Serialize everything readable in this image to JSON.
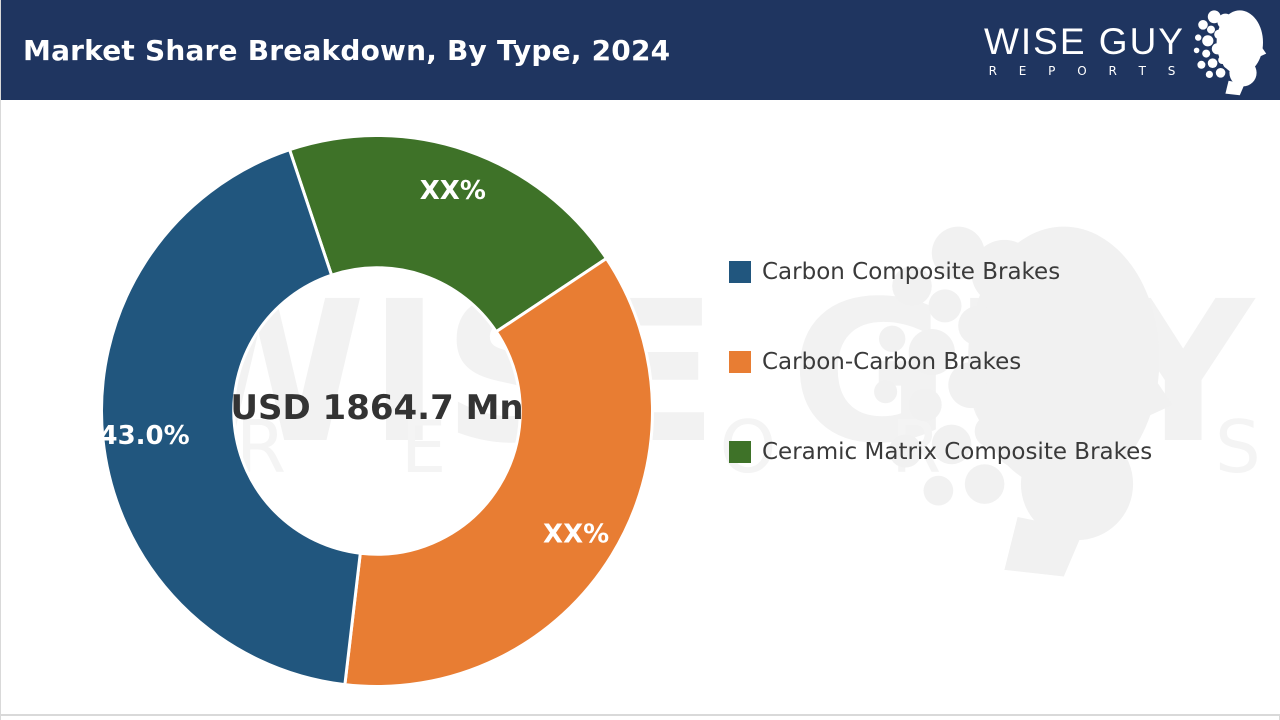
{
  "header": {
    "title": "Market Share Breakdown, By Type, 2024",
    "logo": {
      "name": "Wise Guy Reports",
      "line1": "WISE GUY",
      "line2": "R E P O R T S"
    }
  },
  "watermark": {
    "line1": "WISE GUY",
    "line2": "R E P O R T S"
  },
  "chart_data": {
    "type": "donut",
    "title": "Market Share Breakdown, By Type, 2024",
    "center_label": "USD 1864.7 Mn",
    "start_angle_deg": 108.5,
    "direction": "clockwise",
    "inner_radius_frac": 0.52,
    "label_radius_frac": 0.848,
    "slices": [
      {
        "name": "Ceramic Matrix Composite Brakes",
        "display_label": "XX%",
        "value_pct": 20.8,
        "color": "#3E7228"
      },
      {
        "name": "Carbon-Carbon Brakes",
        "display_label": "XX%",
        "value_pct": 36.2,
        "color": "#E87D33"
      },
      {
        "name": "Carbon Composite Brakes",
        "display_label": "43.0%",
        "value_pct": 43.0,
        "color": "#21567E"
      }
    ],
    "legend_position": "right",
    "slice_separator_color": "#FFFFFF"
  },
  "legend": {
    "items": [
      {
        "label": "Carbon Composite Brakes",
        "color": "#21567E"
      },
      {
        "label": "Carbon-Carbon Brakes",
        "color": "#E87D33"
      },
      {
        "label": "Ceramic Matrix Composite Brakes",
        "color": "#3E7228"
      }
    ]
  },
  "colors": {
    "header_bg": "#1F3560",
    "slice_label_text": "#FFFFFF",
    "center_text": "#333333",
    "legend_text": "#3A3A3A",
    "watermark": "#F2F2F2",
    "bottom_rule": "#D9D9D9"
  }
}
